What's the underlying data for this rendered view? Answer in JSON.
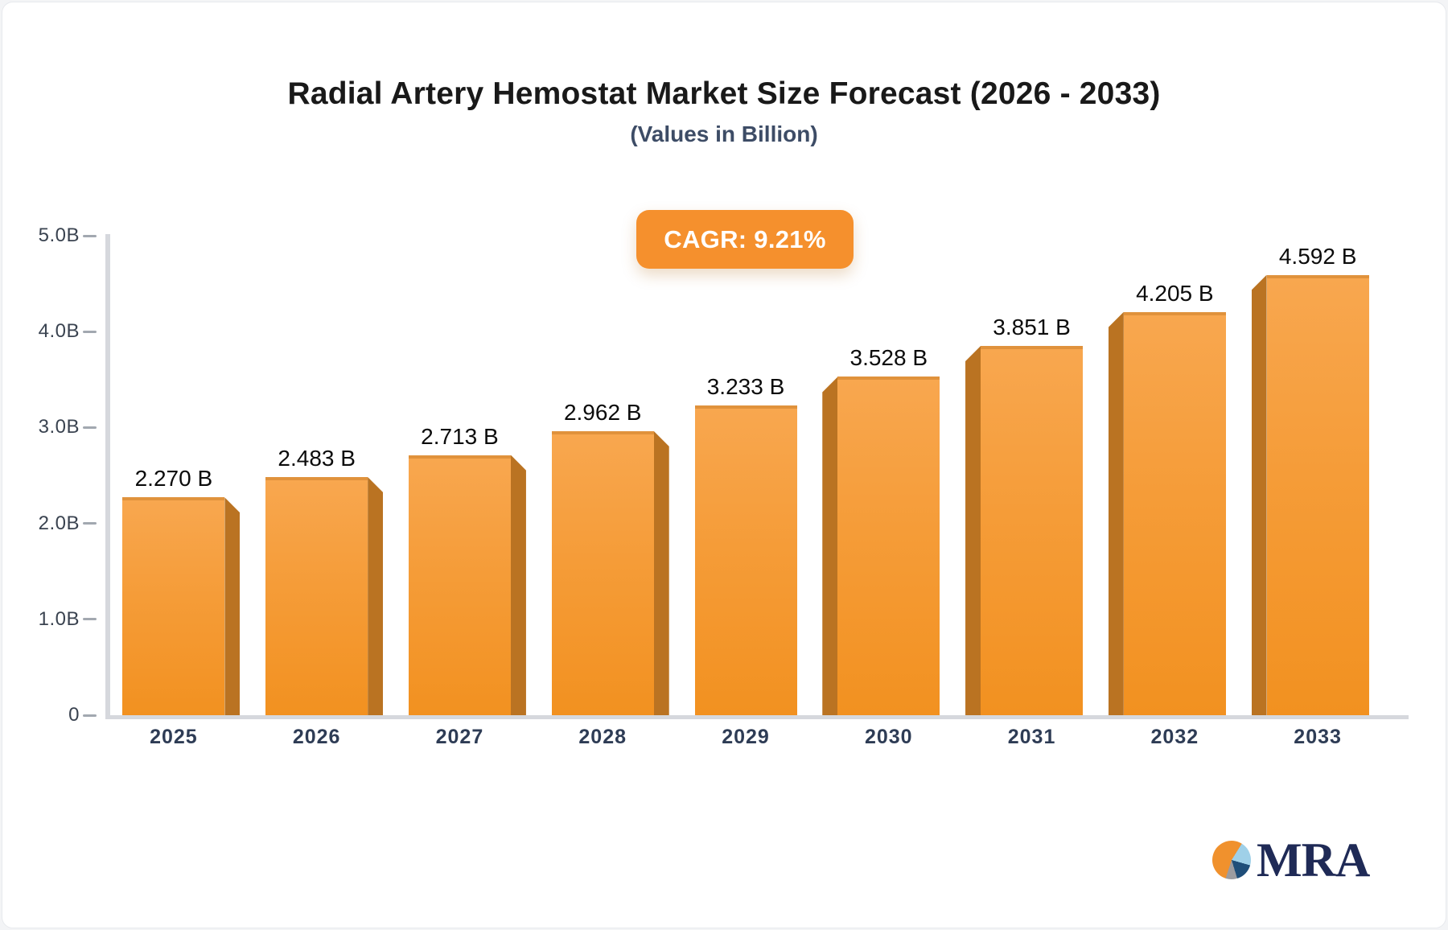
{
  "title": "Radial Artery Hemostat Market Size Forecast (2026 - 2033)",
  "subtitle": "(Values in Billion)",
  "badge": {
    "label": "CAGR: 9.21%",
    "bg_color": "#F5902D"
  },
  "chart_data": {
    "type": "bar",
    "title": "Radial Artery Hemostat Market Size Forecast (2026 - 2033)",
    "subtitle": "(Values in Billion)",
    "categories": [
      "2025",
      "2026",
      "2027",
      "2028",
      "2029",
      "2030",
      "2031",
      "2032",
      "2033"
    ],
    "values": [
      2.27,
      2.483,
      2.713,
      2.962,
      3.233,
      3.528,
      3.851,
      4.205,
      4.592
    ],
    "bar_labels": [
      "2.270 B",
      "2.483 B",
      "2.713 B",
      "2.962 B",
      "3.233 B",
      "3.528 B",
      "3.851 B",
      "4.205 B",
      "4.592 B"
    ],
    "xlabel": "",
    "ylabel": "",
    "ylim": [
      0,
      5
    ],
    "y_ticks": [
      {
        "value": 0,
        "label": "0"
      },
      {
        "value": 1,
        "label": "1.0B"
      },
      {
        "value": 2,
        "label": "2.0B"
      },
      {
        "value": 3,
        "label": "3.0B"
      },
      {
        "value": 4,
        "label": "4.0B"
      },
      {
        "value": 5,
        "label": "5.0B"
      }
    ],
    "grid": false,
    "legend_position": "none",
    "annotations": [
      "CAGR: 9.21%"
    ],
    "bar_color_top": "#F8A74F",
    "bar_color_bottom": "#F29120",
    "bar_side_color": "#BA7322",
    "axis_color": "#d6d8dd"
  },
  "logo": {
    "text": "MRA"
  }
}
